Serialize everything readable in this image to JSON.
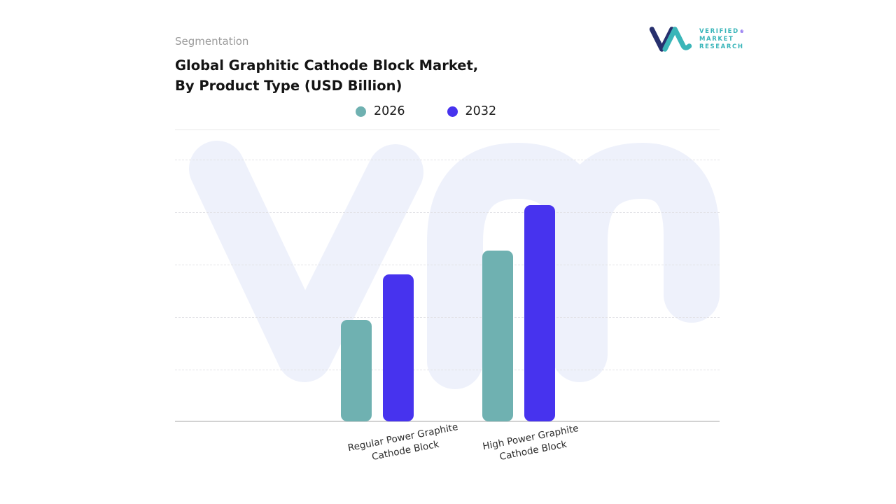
{
  "header": {
    "segmentation": "Segmentation",
    "title_line1": "Global Graphitic Cathode Block Market,",
    "title_line2": "By Product Type (USD Billion)"
  },
  "logo": {
    "verified": "VERIFIED",
    "market": "MARKET",
    "research": "RESEARCH",
    "registered": "®",
    "glyph_navy": "#27306e",
    "glyph_teal": "#3ab5b8"
  },
  "chart_data": {
    "type": "bar",
    "title": "Global Graphitic Cathode Block Market, By Product Type (USD Billion)",
    "categories": [
      "Regular Power Graphite Cathode Block",
      "High Power Graphite Cathode Block"
    ],
    "series": [
      {
        "name": "2026",
        "color": "#6fb1b1",
        "values": [
          47,
          79
        ]
      },
      {
        "name": "2032",
        "color": "#4733ee",
        "values": [
          68,
          100
        ]
      }
    ],
    "xlabel": "",
    "ylabel": "",
    "ylim": [
      0,
      135
    ],
    "value_axis_labels_visible": false,
    "units_note": "values estimated relative to tallest bar = 100; no numeric axis shown",
    "grid": "horizontal dashed",
    "legend_position": "top-center",
    "background_watermark": "vm monogram, light lavender #eef1fb"
  }
}
